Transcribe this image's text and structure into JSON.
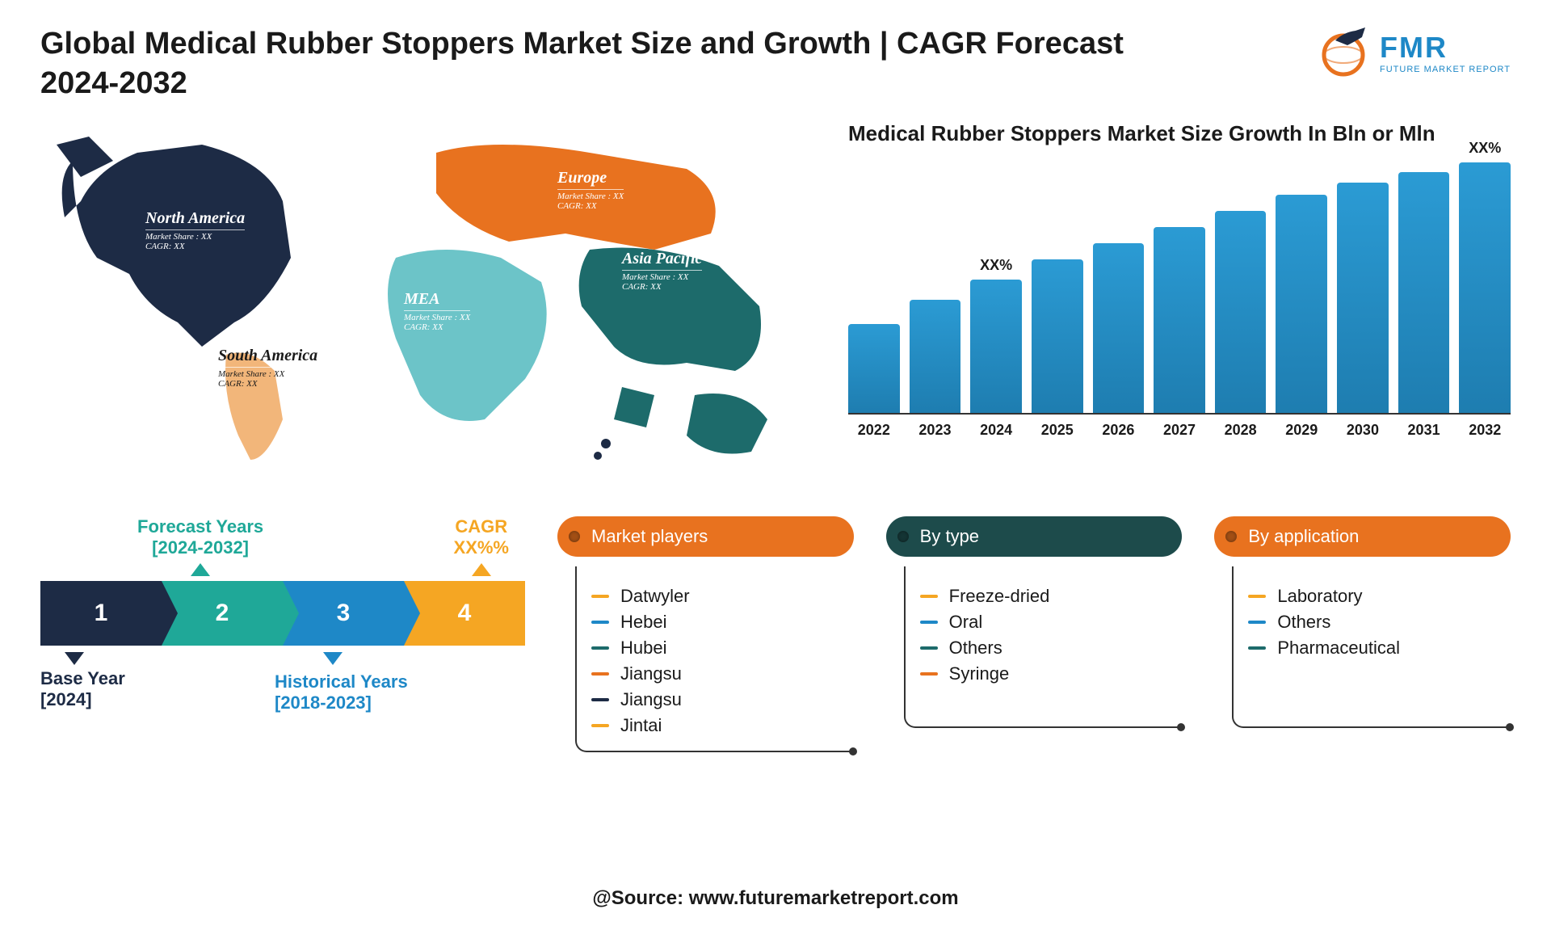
{
  "title": "Global Medical Rubber Stoppers  Market Size and Growth | CAGR Forecast  2024-2032",
  "logo": {
    "main": "FMR",
    "sub": "FUTURE MARKET REPORT"
  },
  "regions": {
    "na": {
      "name": "North America",
      "share": "Market Share : XX",
      "cagr": "CAGR: XX",
      "color": "#1d2b45"
    },
    "sa": {
      "name": "South America",
      "share": "Market Share : XX",
      "cagr": "CAGR: XX",
      "color": "#f2b67a"
    },
    "eu": {
      "name": "Europe",
      "share": "Market Share : XX",
      "cagr": "CAGR: XX",
      "color": "#e8721f"
    },
    "mea": {
      "name": "MEA",
      "share": "Market Share : XX",
      "cagr": "CAGR: XX",
      "color": "#6cc4c8"
    },
    "ap": {
      "name": "Asia Pacific",
      "share": "Market Share : XX",
      "cagr": "CAGR: XX",
      "color": "#1d6b6b"
    }
  },
  "chart": {
    "title": "Medical Rubber Stoppers Market Size Growth In Bln or Mln",
    "years": [
      "2022",
      "2023",
      "2024",
      "2025",
      "2026",
      "2027",
      "2028",
      "2029",
      "2030",
      "2031",
      "2032"
    ],
    "heights": [
      110,
      140,
      165,
      190,
      210,
      230,
      250,
      270,
      285,
      298,
      310
    ],
    "bar_color": "#2195c9",
    "notes": {
      "2024": "XX%",
      "2032": "XX%"
    }
  },
  "timeline": {
    "forecast_label": "Forecast Years",
    "forecast_range": "[2024-2032]",
    "cagr_label": "CAGR",
    "cagr_value": "XX%%",
    "segments": [
      "1",
      "2",
      "3",
      "4"
    ],
    "base_label": "Base Year",
    "base_value": "[2024]",
    "hist_label": "Historical Years",
    "hist_value": "[2018-2023]",
    "colors": {
      "seg1": "#1d2b45",
      "seg2": "#1fa898",
      "seg3": "#1e88c7",
      "seg4": "#f5a623"
    }
  },
  "categories": {
    "players": {
      "title": "Market players",
      "pill_color": "#e8721f",
      "items": [
        {
          "label": "Datwyler",
          "tick": "#f5a623"
        },
        {
          "label": "Hebei",
          "tick": "#1e88c7"
        },
        {
          "label": "Hubei",
          "tick": "#1d6b6b"
        },
        {
          "label": "Jiangsu",
          "tick": "#e8721f"
        },
        {
          "label": "Jiangsu",
          "tick": "#1d2b45"
        },
        {
          "label": "Jintai",
          "tick": "#f5a623"
        }
      ]
    },
    "type": {
      "title": "By type",
      "pill_color": "#1d4b4b",
      "items": [
        {
          "label": "Freeze-dried",
          "tick": "#f5a623"
        },
        {
          "label": "Oral",
          "tick": "#1e88c7"
        },
        {
          "label": "Others",
          "tick": "#1d6b6b"
        },
        {
          "label": "Syringe",
          "tick": "#e8721f"
        }
      ]
    },
    "application": {
      "title": "By application",
      "pill_color": "#e8721f",
      "items": [
        {
          "label": "Laboratory",
          "tick": "#f5a623"
        },
        {
          "label": "Others",
          "tick": "#1e88c7"
        },
        {
          "label": "Pharmaceutical",
          "tick": "#1d6b6b"
        }
      ]
    }
  },
  "source": "@Source: www.futuremarketreport.com"
}
